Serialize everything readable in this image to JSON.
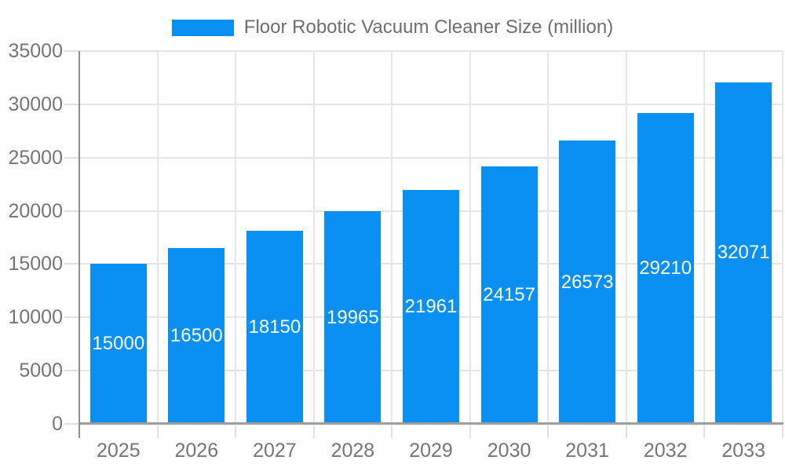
{
  "chart_data": {
    "type": "bar",
    "title": "",
    "categories": [
      "2025",
      "2026",
      "2027",
      "2028",
      "2029",
      "2030",
      "2031",
      "2032",
      "2033"
    ],
    "series": [
      {
        "name": "Floor Robotic Vacuum Cleaner Size (million)",
        "values": [
          15000,
          16500,
          18150,
          19965,
          21961,
          24157,
          26573,
          29210,
          32071
        ]
      }
    ],
    "xlabel": "",
    "ylabel": "",
    "ylim": [
      0,
      35000
    ],
    "ytick_step": 5000,
    "y_tick_labels": [
      "0",
      "5000",
      "10000",
      "15000",
      "20000",
      "25000",
      "30000",
      "35000"
    ],
    "grid": true,
    "legend_position": "top-center",
    "value_labels_position": "inside-center",
    "colors": {
      "bar": "#0990f2",
      "grid": "#e6e6e6",
      "tick": "#e0e0e0",
      "y_axis_line": "#8f8f8f",
      "x_axis_line": "#9e9e9e",
      "axis_label": "#757575",
      "legend_text": "#6e6e6e",
      "value_label": "#ffffff",
      "background": "#ffffff"
    }
  }
}
